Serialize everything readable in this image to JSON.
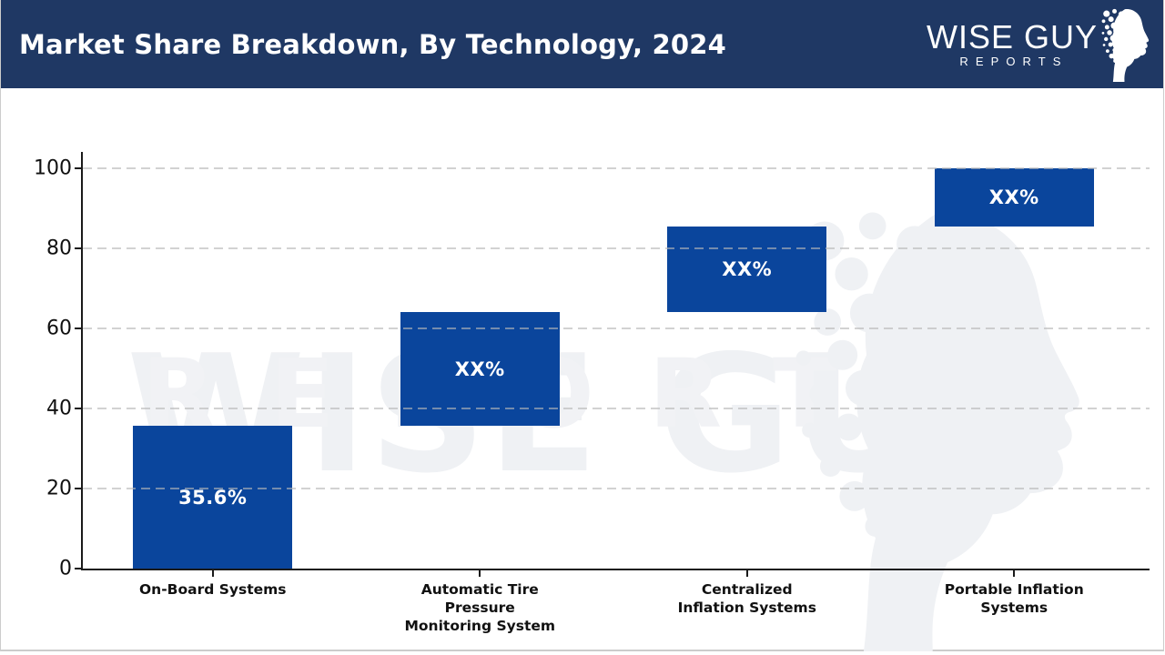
{
  "header": {
    "title": "Market Share Breakdown, By Technology, 2024",
    "bg_color": "#1f3864",
    "logo": {
      "line1": "WISE GUY",
      "line2": "REPORTS"
    }
  },
  "watermark": {
    "line1": "WISE GUY",
    "line2": "REPORTS"
  },
  "chart_data": {
    "type": "bar",
    "variant": "waterfall",
    "title": "Market Share Breakdown, By Technology, 2024",
    "categories": [
      [
        "On-Board Systems"
      ],
      [
        "Automatic Tire",
        "Pressure",
        "Monitoring System"
      ],
      [
        "Centralized",
        "Inflation Systems"
      ],
      [
        "Portable Inflation",
        "Systems"
      ]
    ],
    "segments": [
      {
        "category": "On-Board Systems",
        "start": 0,
        "end": 35.6,
        "label": "35.6%"
      },
      {
        "category": "Automatic Tire Pressure Monitoring System",
        "start": 35.6,
        "end": 64,
        "label": "XX%"
      },
      {
        "category": "Centralized Inflation Systems",
        "start": 64,
        "end": 85.5,
        "label": "XX%"
      },
      {
        "category": "Portable Inflation Systems",
        "start": 85.5,
        "end": 100,
        "label": "XX%"
      }
    ],
    "yticks": [
      0,
      20,
      40,
      60,
      80,
      100
    ],
    "ylim": [
      0,
      104.5
    ],
    "xlabel": "",
    "ylabel": "",
    "grid": {
      "style": "dashed",
      "color": "#d2d2d2",
      "drawn_over_bars": true
    },
    "legend": "none",
    "bar_color": "#0a459c",
    "bar_label_color": "#ffffff",
    "axis_color": "#1a1a1a"
  }
}
